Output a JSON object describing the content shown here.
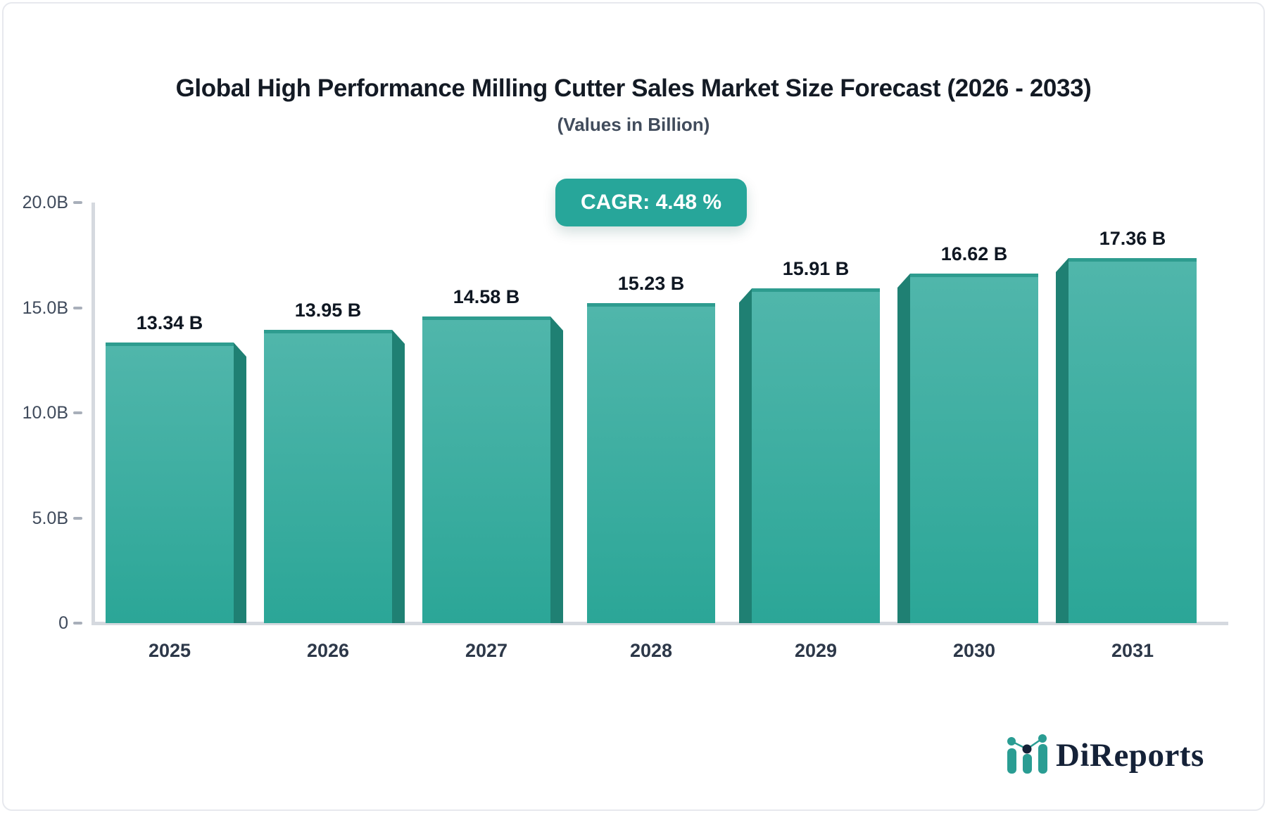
{
  "header": {
    "title": "Global High Performance Milling Cutter Sales Market Size Forecast (2026 - 2033)",
    "subtitle": "(Values in Billion)"
  },
  "badge": {
    "label": "CAGR: 4.48 %",
    "bg_color": "#27a69a",
    "text_color": "#ffffff"
  },
  "chart_data": {
    "type": "bar",
    "title": "Global High Performance Milling Cutter Sales Market Size Forecast (2026 - 2033)",
    "subtitle": "(Values in Billion)",
    "categories": [
      "2025",
      "2026",
      "2027",
      "2028",
      "2029",
      "2030",
      "2031"
    ],
    "values": [
      13.34,
      13.95,
      14.58,
      15.23,
      15.91,
      16.62,
      17.36
    ],
    "value_labels": [
      "13.34 B",
      "13.95 B",
      "14.58 B",
      "15.23 B",
      "15.91 B",
      "16.62 B",
      "17.36 B"
    ],
    "cagr_percent": 4.48,
    "xlabel": "",
    "ylabel": "",
    "ylim": [
      0,
      20
    ],
    "yticks": [
      0,
      5,
      10,
      15,
      20
    ],
    "ytick_labels": [
      "0",
      "5.0B",
      "10.0B",
      "15.0B",
      "20.0B"
    ],
    "grid": "off",
    "legend": "none",
    "style": "3d-perspective-bars-center-vanishing-point",
    "colors": {
      "face_top": "#50b6ab",
      "face_bottom": "#2ba697",
      "face_cap": "#2e9c8f",
      "side_panel": "#1f8073",
      "axis_line": "#d5d9df",
      "tick": "#a8afba",
      "tick_text": "#3f4a5b",
      "value_text": "#0f1722",
      "category_text": "#2d3849"
    }
  },
  "footer": {
    "logo_text": "DiReports",
    "logo_icon": "mini-bar-line-chart-icon",
    "logo_icon_color": "#2a9d93",
    "logo_text_color": "#152238"
  }
}
